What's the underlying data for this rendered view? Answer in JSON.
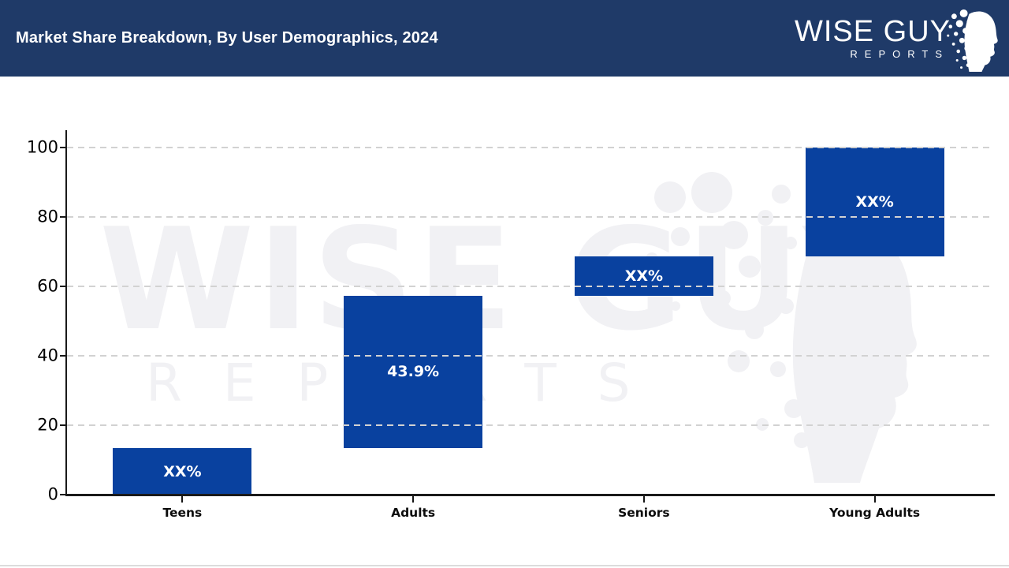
{
  "header": {
    "title": "Market Share Breakdown, By User Demographics, 2024",
    "logo": {
      "primary": "WISE GUY",
      "secondary": "REPORTS"
    }
  },
  "watermark": {
    "primary": "WISE GUY",
    "secondary": "REPORTS"
  },
  "chart_data": {
    "type": "bar",
    "variant": "floating-waterfall",
    "title": "Market Share Breakdown, By User Demographics, 2024",
    "categories": [
      "Teens",
      "Adults",
      "Seniors",
      "Young Adults"
    ],
    "series": [
      {
        "name": "Market share segment",
        "ranges": [
          [
            0,
            13.4
          ],
          [
            13.4,
            57.3
          ],
          [
            57.3,
            68.6
          ],
          [
            68.6,
            100
          ]
        ],
        "labels": [
          "XX%",
          "43.9%",
          "XX%",
          "XX%"
        ]
      }
    ],
    "xlabel": "",
    "ylabel": "",
    "ylim": [
      0,
      105
    ],
    "yticks": [
      0,
      20,
      40,
      60,
      80,
      100
    ],
    "grid": {
      "horizontal": true,
      "style": "dashed",
      "color": "#d2d2d2"
    },
    "legend": "none",
    "colors": {
      "bar": "#09419f",
      "axis": "#1a1a1a",
      "tick_label": "#000000",
      "bar_label": "#ffffff",
      "header_bg": "#1f3a68",
      "watermark": "#f1f1f4"
    }
  }
}
